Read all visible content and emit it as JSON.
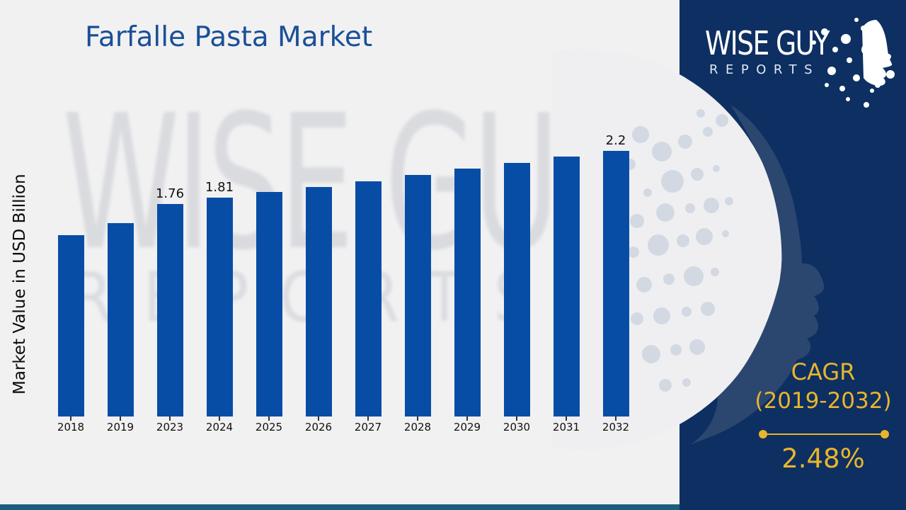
{
  "page": {
    "background": "#f1f1f2"
  },
  "title": "Farfalle Pasta Market",
  "title_color": "#1a4f97",
  "ylabel": "Market Value in USD Billion",
  "watermark": {
    "line1": "WISE GUY",
    "line2": "REPORTS"
  },
  "logo": {
    "line1": "WISE GUY",
    "line2": "REPORTS"
  },
  "cagr": {
    "label": "CAGR",
    "range": "(2019-2032)",
    "value": "2.48%"
  },
  "colors": {
    "bar_blue": "#084da5",
    "navy_panel": "#0e2f62",
    "gold": "#e9b62a",
    "teal_stripe": "#1b5f7e",
    "face_blue": "#2b4770",
    "circle_gray": "#efeff1",
    "dot_gray": "#d3d9e2",
    "watermark_gray": "#d9dbdf"
  },
  "chart_data": {
    "type": "bar",
    "title": "Farfalle Pasta Market",
    "xlabel": "",
    "ylabel": "Market Value in USD Billion",
    "categories": [
      "2018",
      "2019",
      "2023",
      "2024",
      "2025",
      "2026",
      "2027",
      "2028",
      "2029",
      "2030",
      "2031",
      "2032"
    ],
    "values": [
      1.5,
      1.6,
      1.76,
      1.81,
      1.86,
      1.9,
      1.95,
      2.0,
      2.05,
      2.1,
      2.15,
      2.2
    ],
    "bar_labels": [
      "",
      "",
      "1.76",
      "1.81",
      "",
      "",
      "",
      "",
      "",
      "",
      "",
      "2.2"
    ],
    "bar_color": "#084da5",
    "ylim": [
      0,
      2.4
    ],
    "grid": false,
    "legend": false,
    "unit": "USD Billion"
  }
}
